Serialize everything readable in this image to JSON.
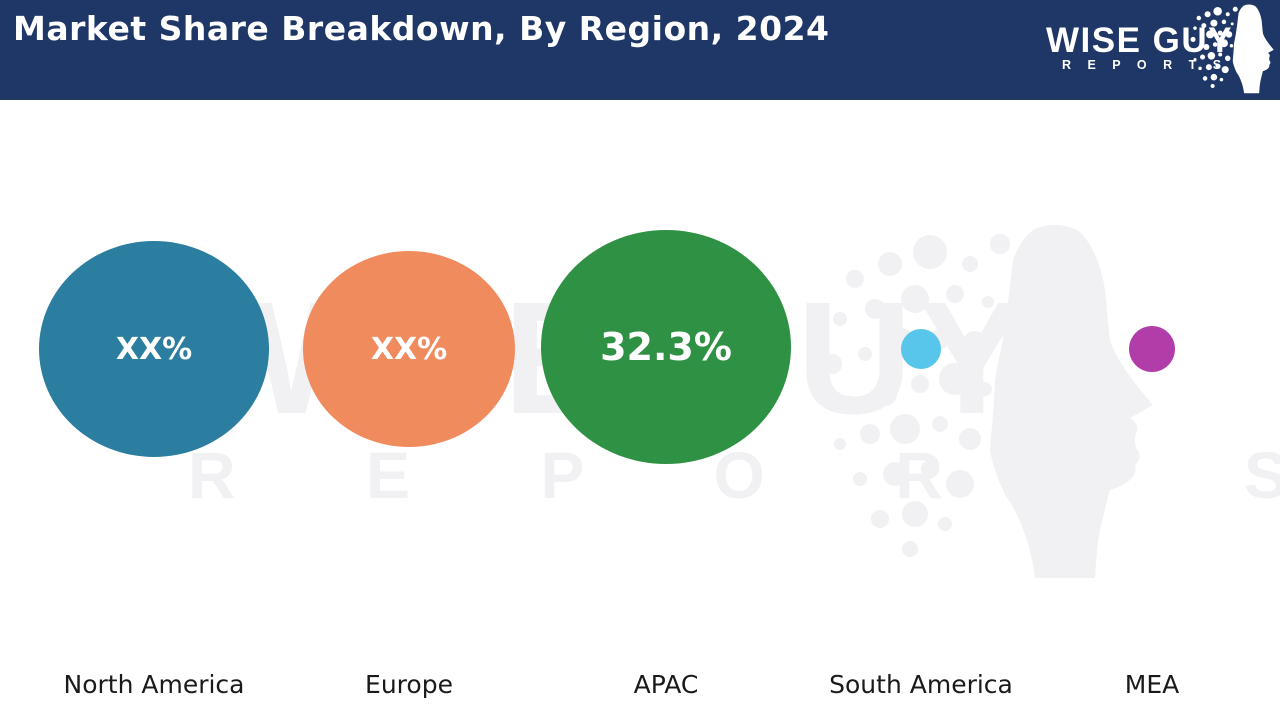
{
  "header": {
    "title": "Market Share Breakdown, By Region, 2024",
    "logo_line1": "WISE GUY",
    "logo_line2": "R E P O R T S"
  },
  "watermark": {
    "line1": "WISE GUY",
    "line2": "R E P O R T S"
  },
  "chart_data": {
    "type": "bubble",
    "title": "Market Share Breakdown, By Region, 2024",
    "unit": "%",
    "categories": [
      "North America",
      "Europe",
      "APAC",
      "South America",
      "MEA"
    ],
    "series": [
      {
        "name": "North America",
        "value_label": "XX%",
        "color": "#2b7ea0"
      },
      {
        "name": "Europe",
        "value_label": "XX%",
        "color": "#f08b5e"
      },
      {
        "name": "APAC",
        "value_label": "32.3%",
        "value": 32.3,
        "color": "#2f9143"
      },
      {
        "name": "South America",
        "value_label": "",
        "color": "#58c5ea"
      },
      {
        "name": "MEA",
        "value_label": "",
        "color": "#b13da8"
      }
    ],
    "legend_position": "bottom",
    "axes": "none",
    "grid": false
  },
  "colors": {
    "header_bg": "#1f3766",
    "watermark": "#f1f1f4",
    "category_label_text": "#1a1a1a",
    "bubble_value_text": "#ffffff"
  }
}
